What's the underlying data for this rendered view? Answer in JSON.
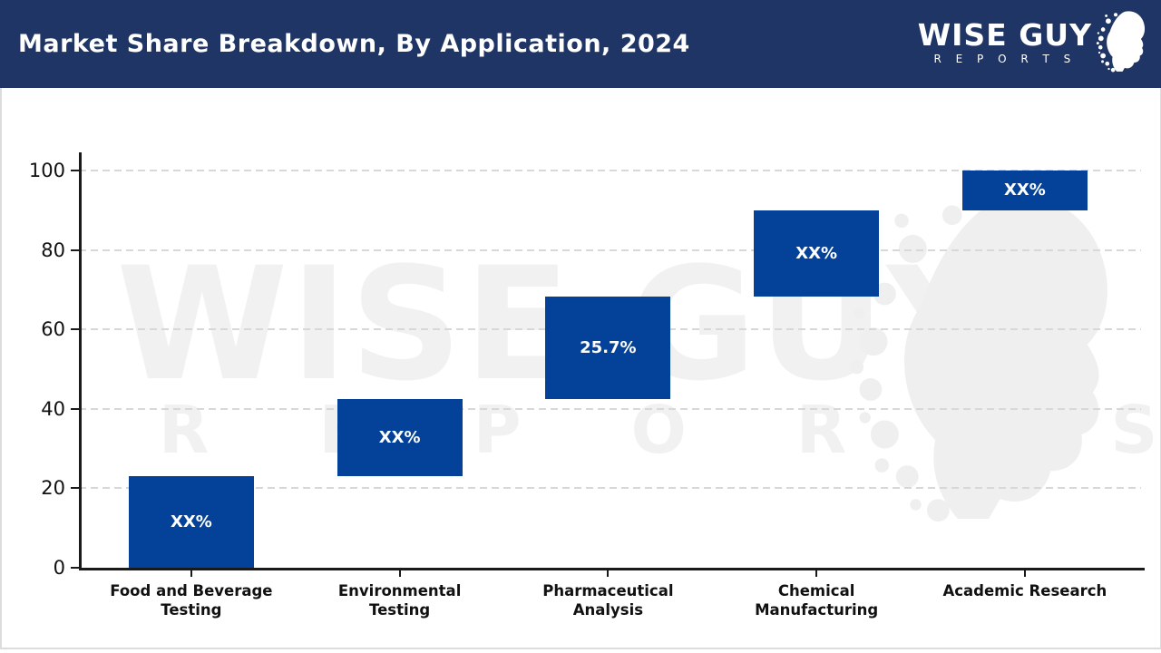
{
  "header": {
    "title": "Market Share Breakdown, By Application, 2024",
    "logo": {
      "line1": "WISE GUY",
      "line2": "R E P O R T S",
      "head_icon": "dotted-head-profile-icon"
    }
  },
  "watermark": {
    "line1": "WISE GUY",
    "line2": "R E P O R T S"
  },
  "colors": {
    "header_bg": "#1f3565",
    "bar": "#04429a",
    "bar_label": "#ffffff",
    "grid": "#d8d8d8",
    "axis": "#1a1a1a",
    "watermark": "#f1f1f1"
  },
  "chart_data": {
    "type": "bar",
    "subtype": "floating-waterfall",
    "title": "Market Share Breakdown, By Application, 2024",
    "xlabel": "",
    "ylabel": "",
    "ylim": [
      0,
      105
    ],
    "yticks": [
      0,
      20,
      40,
      60,
      80,
      100
    ],
    "grid": "horizontal-dashed",
    "legend": null,
    "bar_color": "#04429a",
    "categories": [
      "Food and Beverage Testing",
      "Environmental Testing",
      "Pharmaceutical Analysis",
      "Chemical Manufacturing",
      "Academic Research"
    ],
    "segments": [
      {
        "category": "Food and Beverage Testing",
        "label_lines": [
          "Food and Beverage",
          "Testing"
        ],
        "start": 0,
        "end": 23,
        "value_label": "XX%"
      },
      {
        "category": "Environmental Testing",
        "label_lines": [
          "Environmental",
          "Testing"
        ],
        "start": 23,
        "end": 42.5,
        "value_label": "XX%"
      },
      {
        "category": "Pharmaceutical Analysis",
        "label_lines": [
          "Pharmaceutical",
          "Analysis"
        ],
        "start": 42.5,
        "end": 68.2,
        "value_label": "25.7%"
      },
      {
        "category": "Chemical Manufacturing",
        "label_lines": [
          "Chemical",
          "Manufacturing"
        ],
        "start": 68.2,
        "end": 90,
        "value_label": "XX%"
      },
      {
        "category": "Academic Research",
        "label_lines": [
          "Academic Research"
        ],
        "start": 90,
        "end": 100,
        "value_label": "XX%"
      }
    ]
  }
}
